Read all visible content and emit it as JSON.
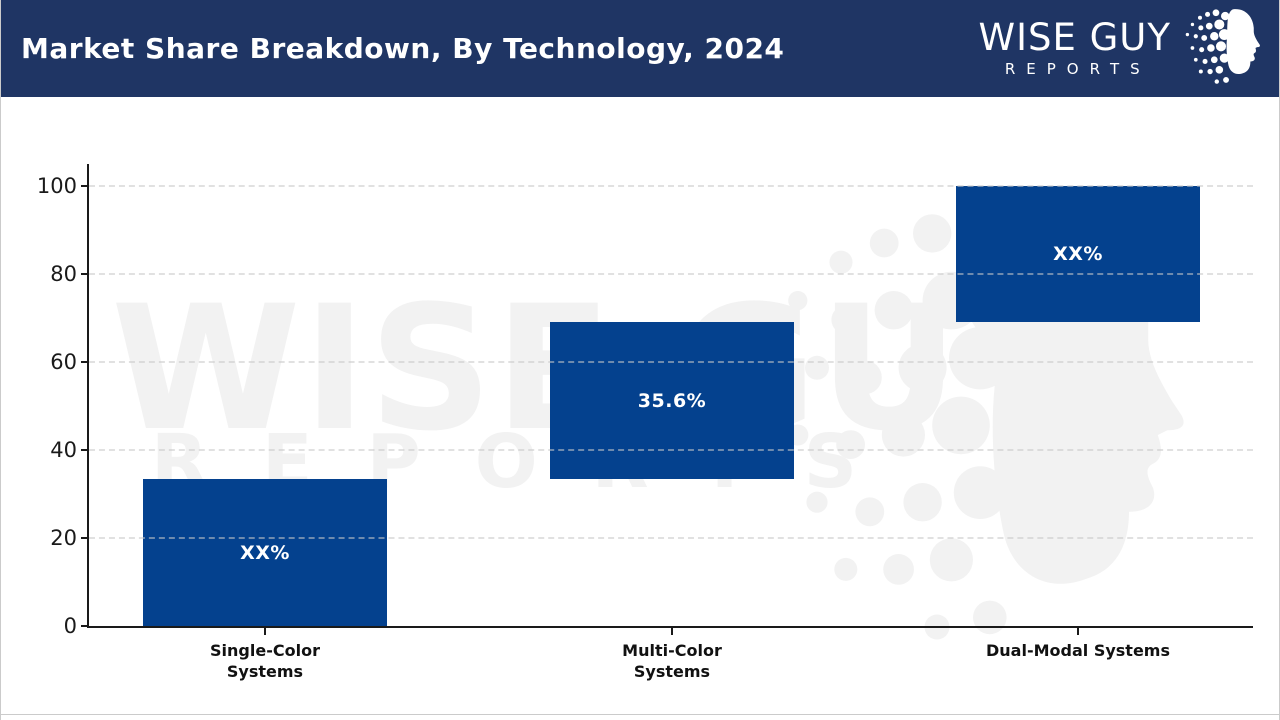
{
  "colors": {
    "header_bg": "#1f3564",
    "bar": "#04418e",
    "title_text": "#ffffff",
    "axis": "#1a1a1a",
    "gridline": "rgba(200,200,200,0.55)",
    "watermark": "#f2f2f2",
    "category_label": "#111111",
    "bar_label": "#ffffff",
    "frame_border": "#cbcbcb"
  },
  "header": {
    "title": "Market Share Breakdown, By Technology, 2024",
    "logo": {
      "name": "WISE GUY",
      "subname": "REPORTS"
    }
  },
  "watermark": {
    "line1": "WISE GUY",
    "line2": "REPORTS"
  },
  "chart_data": {
    "type": "bar",
    "variant": "floating stacked segments (waterfall-style market share)",
    "title": "Market Share Breakdown, By Technology, 2024",
    "categories": [
      "Single-Color\nSystems",
      "Multi-Color\nSystems",
      "Dual-Modal Systems"
    ],
    "bars": [
      {
        "category": "Single-Color Systems",
        "label": "XX%",
        "start": 0,
        "end": 33.4
      },
      {
        "category": "Multi-Color Systems",
        "label": "35.6%",
        "start": 33.4,
        "end": 69
      },
      {
        "category": "Dual-Modal Systems",
        "label": "XX%",
        "start": 69,
        "end": 100
      }
    ],
    "yticks": [
      0,
      20,
      40,
      60,
      80,
      100
    ],
    "ylim": [
      0,
      105
    ],
    "xlabel": "",
    "ylabel": "",
    "grid": "horizontal dashed, drawn over bars",
    "legend": "none"
  }
}
